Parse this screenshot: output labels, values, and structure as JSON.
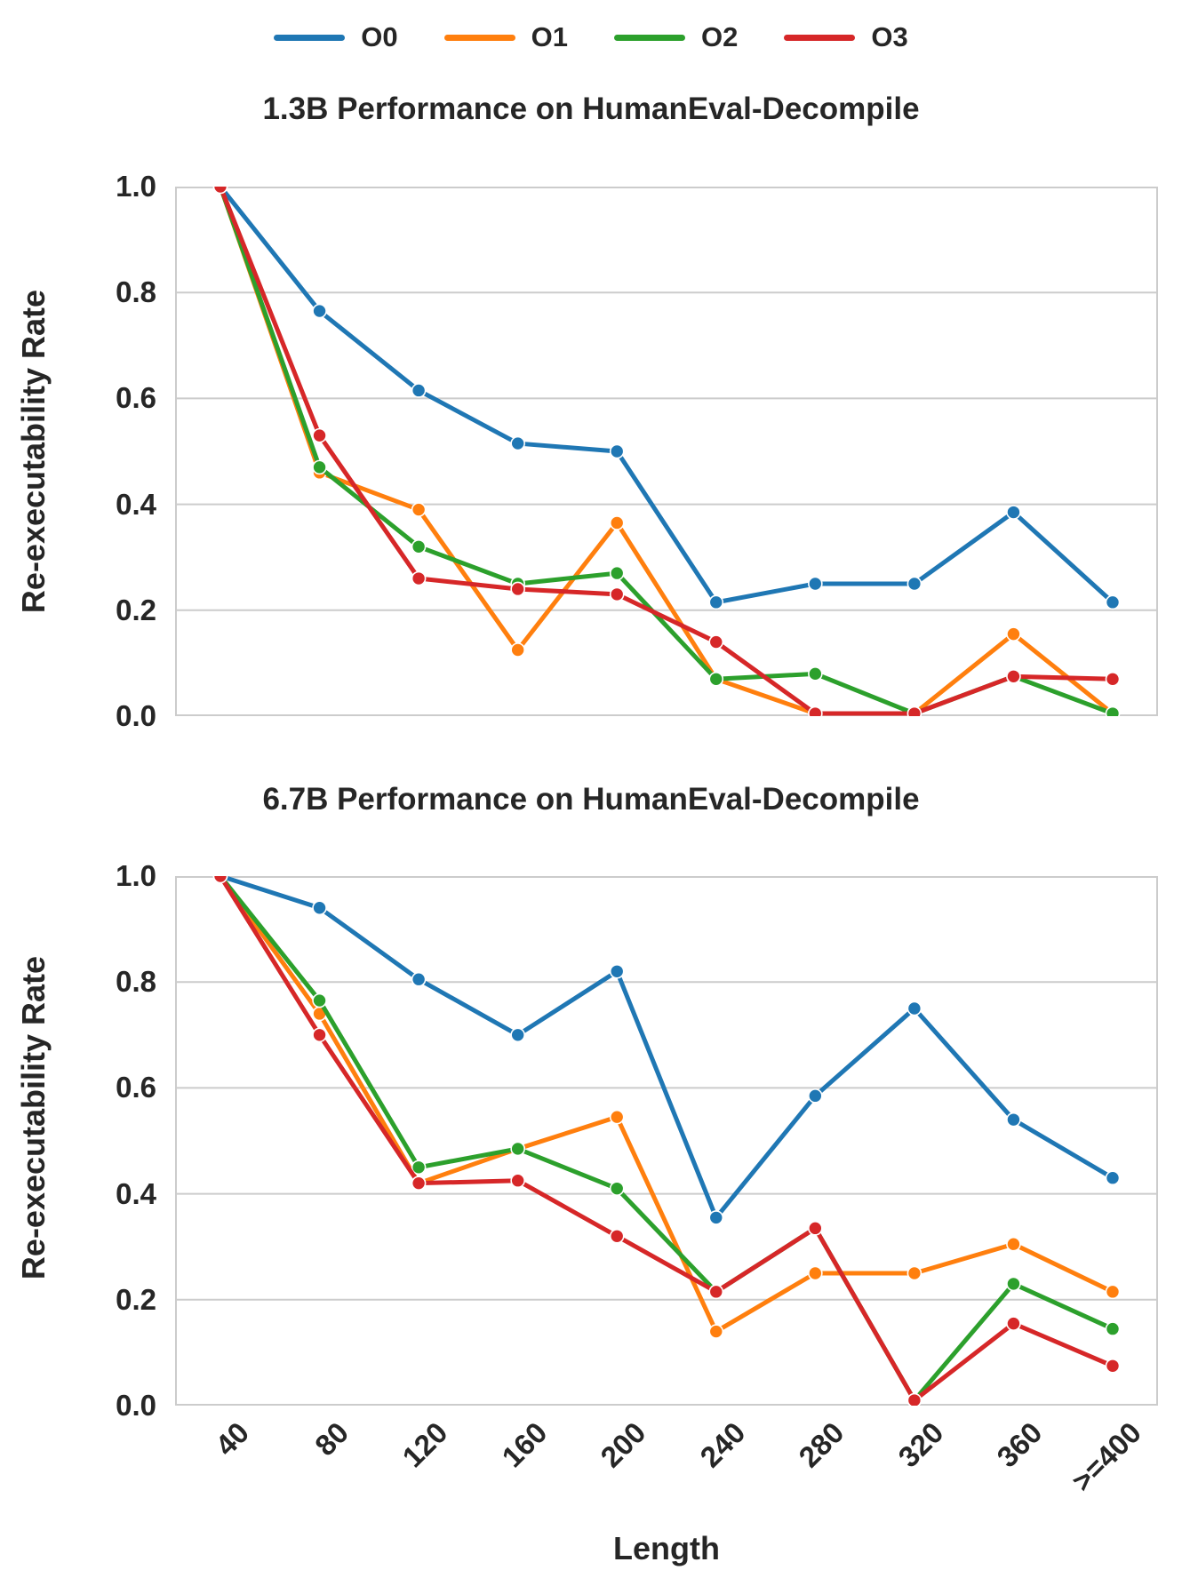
{
  "figure": {
    "xlabel": "Length",
    "ylabel": "Re-executability Rate",
    "text_color": "#262626",
    "grid_color": "#cccccc",
    "background": "#ffffff",
    "legend": [
      {
        "label": "O0",
        "color": "#1f77b4"
      },
      {
        "label": "O1",
        "color": "#ff7f0e"
      },
      {
        "label": "O2",
        "color": "#2ca02c"
      },
      {
        "label": "O3",
        "color": "#d62728"
      }
    ]
  },
  "chart_data": [
    {
      "type": "line",
      "title": "1.3B Performance on HumanEval-Decompile",
      "xlabel": "Length",
      "ylabel": "Re-executability Rate",
      "categories": [
        "40",
        "80",
        "120",
        "160",
        "200",
        "240",
        "280",
        "320",
        "360",
        ">=400"
      ],
      "ylim": [
        0.0,
        1.0
      ],
      "yticks": [
        "1.0",
        "0.8",
        "0.6",
        "0.4",
        "0.2",
        "0.0"
      ],
      "grid": true,
      "legend_position": "top-center",
      "markers": true,
      "series": [
        {
          "name": "O0",
          "color": "#1f77b4",
          "values": [
            1.0,
            0.765,
            0.615,
            0.515,
            0.5,
            0.215,
            0.25,
            0.25,
            0.385,
            0.215
          ]
        },
        {
          "name": "O1",
          "color": "#ff7f0e",
          "values": [
            1.0,
            0.46,
            0.39,
            0.125,
            0.365,
            0.07,
            0.005,
            0.005,
            0.155,
            0.005
          ]
        },
        {
          "name": "O2",
          "color": "#2ca02c",
          "values": [
            1.0,
            0.47,
            0.32,
            0.25,
            0.27,
            0.07,
            0.08,
            0.005,
            0.075,
            0.005
          ]
        },
        {
          "name": "O3",
          "color": "#d62728",
          "values": [
            1.0,
            0.53,
            0.26,
            0.24,
            0.23,
            0.14,
            0.005,
            0.005,
            0.075,
            0.07
          ]
        }
      ]
    },
    {
      "type": "line",
      "title": "6.7B Performance on HumanEval-Decompile",
      "xlabel": "Length",
      "ylabel": "Re-executability Rate",
      "categories": [
        "40",
        "80",
        "120",
        "160",
        "200",
        "240",
        "280",
        "320",
        "360",
        ">=400"
      ],
      "ylim": [
        0.0,
        1.0
      ],
      "yticks": [
        "1.0",
        "0.8",
        "0.6",
        "0.4",
        "0.2",
        "0.0"
      ],
      "grid": true,
      "legend_position": "top-center",
      "markers": true,
      "series": [
        {
          "name": "O0",
          "color": "#1f77b4",
          "values": [
            1.0,
            0.94,
            0.805,
            0.7,
            0.82,
            0.355,
            0.585,
            0.75,
            0.54,
            0.43
          ]
        },
        {
          "name": "O1",
          "color": "#ff7f0e",
          "values": [
            1.0,
            0.74,
            0.42,
            0.485,
            0.545,
            0.14,
            0.25,
            0.25,
            0.305,
            0.215
          ]
        },
        {
          "name": "O2",
          "color": "#2ca02c",
          "values": [
            1.0,
            0.765,
            0.45,
            0.485,
            0.41,
            0.215,
            0.335,
            0.01,
            0.23,
            0.145
          ]
        },
        {
          "name": "O3",
          "color": "#d62728",
          "values": [
            1.0,
            0.7,
            0.42,
            0.425,
            0.32,
            0.215,
            0.335,
            0.01,
            0.155,
            0.075
          ]
        }
      ]
    }
  ]
}
